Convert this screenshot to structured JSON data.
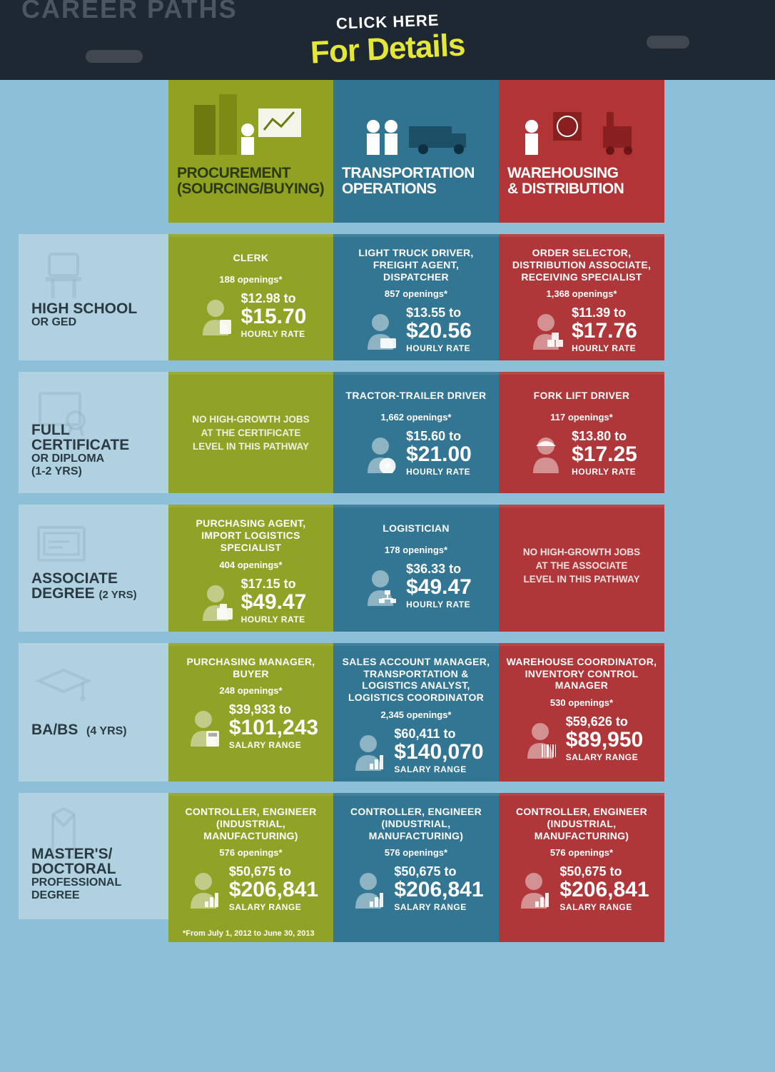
{
  "banner": {
    "click": "CLICK HERE",
    "details": "For Details"
  },
  "page_title": "CAREER PATHS",
  "columns": {
    "proc": {
      "title": "PROCUREMENT\n(SOURCING/BUYING)",
      "header_bg": "#8ca018",
      "cell_bg": "rgba(145,160,20,0.9)",
      "title_color": "#2b3a12"
    },
    "trans": {
      "title": "TRANSPORTATION\nOPERATIONS",
      "header_bg": "#2a6e8c",
      "cell_bg": "rgba(40,110,140,0.9)",
      "title_color": "#ffffff"
    },
    "ware": {
      "title": "WAREHOUSING\n& DISTRIBUTION",
      "header_bg": "#b42828",
      "cell_bg": "rgba(180,40,40,0.9)",
      "title_color": "#ffffff"
    }
  },
  "rows": [
    {
      "id": "hs",
      "label_main": "HIGH SCHOOL",
      "label_sub": "OR GED",
      "label_yrs": "",
      "icon": "chair-icon",
      "cells": {
        "proc": {
          "job": "CLERK",
          "openings": "188 openings*",
          "from": "$12.98 to",
          "to": "$15.70",
          "lbl": "HOURLY RATE",
          "icon": "clipboard"
        },
        "trans": {
          "job": "LIGHT TRUCK DRIVER, FREIGHT AGENT, DISPATCHER",
          "openings": "857 openings*",
          "from": "$13.55 to",
          "to": "$20.56",
          "lbl": "HOURLY RATE",
          "icon": "truck"
        },
        "ware": {
          "job": "ORDER SELECTOR, DISTRIBUTION ASSOCIATE, RECEIVING SPECIALIST",
          "openings": "1,368 openings*",
          "from": "$11.39 to",
          "to": "$17.76",
          "lbl": "HOURLY RATE",
          "icon": "boxes"
        }
      }
    },
    {
      "id": "cert",
      "label_main": "FULL CERTIFICATE",
      "label_sub": "OR DIPLOMA",
      "label_yrs": "(1-2 YRS)",
      "icon": "certificate-icon",
      "cells": {
        "proc": {
          "nohg": "NO HIGH-GROWTH JOBS AT THE CERTIFICATE LEVEL IN THIS PATHWAY"
        },
        "trans": {
          "job": "TRACTOR-TRAILER DRIVER",
          "openings": "1,662 openings*",
          "from": "$15.60 to",
          "to": "$21.00",
          "lbl": "HOURLY RATE",
          "icon": "wheel"
        },
        "ware": {
          "job": "FORK LIFT DRIVER",
          "openings": "117 openings*",
          "from": "$13.80 to",
          "to": "$17.25",
          "lbl": "HOURLY RATE",
          "icon": "hardhat"
        }
      }
    },
    {
      "id": "assoc",
      "label_main": "ASSOCIATE DEGREE",
      "label_sub": "",
      "label_yrs": "(2 YRS)",
      "icon": "diploma-icon",
      "cells": {
        "proc": {
          "job": "PURCHASING AGENT, IMPORT LOGISTICS SPECIALIST",
          "openings": "404 openings*",
          "from": "$17.15 to",
          "to": "$49.47",
          "lbl": "HOURLY RATE",
          "icon": "register"
        },
        "trans": {
          "job": "LOGISTICIAN",
          "openings": "178 openings*",
          "from": "$36.33 to",
          "to": "$49.47",
          "lbl": "HOURLY RATE",
          "icon": "orgchart"
        },
        "ware": {
          "nohg": "NO HIGH-GROWTH JOBS AT THE ASSOCIATE LEVEL IN THIS PATHWAY"
        }
      }
    },
    {
      "id": "ba",
      "label_main": "BA/BS",
      "label_sub": "",
      "label_yrs": "(4 YRS)",
      "icon": "gradcap-icon",
      "cells": {
        "proc": {
          "job": "PURCHASING MANAGER, BUYER",
          "openings": "248 openings*",
          "from": "$39,933 to",
          "to": "$101,243",
          "lbl": "SALARY RANGE",
          "icon": "calculator"
        },
        "trans": {
          "job": "SALES ACCOUNT MANAGER, TRANSPORTATION & LOGISTICS ANALYST, LOGISTICS COORDINATOR",
          "openings": "2,345 openings*",
          "from": "$60,411 to",
          "to": "$140,070",
          "lbl": "SALARY RANGE",
          "icon": "chartup"
        },
        "ware": {
          "job": "WAREHOUSE COORDINATOR, INVENTORY CONTROL MANAGER",
          "openings": "530 openings*",
          "from": "$59,626 to",
          "to": "$89,950",
          "lbl": "SALARY RANGE",
          "icon": "barcode"
        }
      }
    },
    {
      "id": "masters",
      "label_main": "MASTER'S/ DOCTORAL",
      "label_sub": "PROFESSIONAL DEGREE",
      "label_yrs": "",
      "icon": "gown-icon",
      "cells": {
        "proc": {
          "job": "CONTROLLER, ENGINEER (INDUSTRIAL, MANUFACTURING)",
          "openings": "576 openings*",
          "from": "$50,675 to",
          "to": "$206,841",
          "lbl": "SALARY RANGE",
          "icon": "chartup"
        },
        "trans": {
          "job": "CONTROLLER, ENGINEER (INDUSTRIAL, MANUFACTURING)",
          "openings": "576 openings*",
          "from": "$50,675 to",
          "to": "$206,841",
          "lbl": "SALARY RANGE",
          "icon": "chartup"
        },
        "ware": {
          "job": "CONTROLLER, ENGINEER (INDUSTRIAL, MANUFACTURING)",
          "openings": "576 openings*",
          "from": "$50,675 to",
          "to": "$206,841",
          "lbl": "SALARY RANGE",
          "icon": "chartup"
        }
      }
    }
  ],
  "footnote": "*From July 1, 2012 to June 30, 2013",
  "colors": {
    "sky": "#8bc0d8",
    "banner_bg": "#1e2832",
    "banner_details": "#e4e638",
    "ground": "#3a6b8a",
    "row_label_bg": "rgba(200,220,230,0.6)",
    "row_label_text": "#2b3a42"
  }
}
